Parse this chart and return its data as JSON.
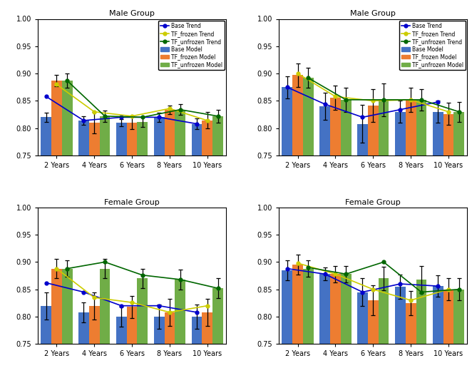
{
  "years": [
    "2 Years",
    "4 Years",
    "6 Years",
    "8 Years",
    "10 Years"
  ],
  "x_positions": [
    0,
    1,
    2,
    3,
    4
  ],
  "top_left": {
    "title": "Male Group",
    "bar_base": [
      0.82,
      0.814,
      0.81,
      0.82,
      0.808
    ],
    "bar_frozen": [
      0.887,
      0.81,
      0.81,
      0.834,
      0.814
    ],
    "bar_unfrozen": [
      0.887,
      0.822,
      0.811,
      0.834,
      0.822
    ],
    "bar_err_base": [
      0.008,
      0.008,
      0.007,
      0.008,
      0.01
    ],
    "bar_err_frozen": [
      0.01,
      0.02,
      0.012,
      0.008,
      0.015
    ],
    "bar_err_unfrozen": [
      0.013,
      0.01,
      0.009,
      0.01,
      0.012
    ],
    "trend_base": [
      0.858,
      0.814,
      0.82,
      0.82,
      0.808
    ],
    "trend_frozen": [
      0.88,
      0.83,
      0.822,
      0.836,
      0.814
    ],
    "trend_unfrozen": [
      0.887,
      0.822,
      0.82,
      0.834,
      0.822
    ],
    "ylim": [
      0.75,
      1.0
    ]
  },
  "top_right": {
    "title": "Male Group",
    "bar_base": [
      0.875,
      0.84,
      0.808,
      0.83,
      0.83
    ],
    "bar_frozen": [
      0.897,
      0.856,
      0.842,
      0.852,
      0.826
    ],
    "bar_unfrozen": [
      0.892,
      0.852,
      0.852,
      0.852,
      0.83
    ],
    "bar_err_base": [
      0.02,
      0.025,
      0.035,
      0.02,
      0.02
    ],
    "bar_err_frozen": [
      0.022,
      0.022,
      0.03,
      0.022,
      0.02
    ],
    "bar_err_unfrozen": [
      0.018,
      0.022,
      0.03,
      0.02,
      0.018
    ],
    "trend_base": [
      0.875,
      0.844,
      0.82,
      0.834,
      0.848
    ],
    "trend_frozen": [
      0.9,
      0.858,
      0.85,
      0.852,
      0.83
    ],
    "trend_unfrozen": [
      0.892,
      0.852,
      0.852,
      0.852,
      0.83
    ],
    "ylim": [
      0.75,
      1.0
    ]
  },
  "bottom_left": {
    "title": "Female Group",
    "bar_base": [
      0.82,
      0.808,
      0.8,
      0.8,
      0.8
    ],
    "bar_frozen": [
      0.888,
      0.82,
      0.818,
      0.808,
      0.808
    ],
    "bar_unfrozen": [
      0.888,
      0.888,
      0.87,
      0.868,
      0.852
    ],
    "bar_err_base": [
      0.025,
      0.018,
      0.018,
      0.022,
      0.022
    ],
    "bar_err_frozen": [
      0.018,
      0.025,
      0.02,
      0.025,
      0.025
    ],
    "bar_err_unfrozen": [
      0.015,
      0.018,
      0.018,
      0.018,
      0.018
    ],
    "trend_base": [
      0.862,
      0.845,
      0.82,
      0.82,
      0.808
    ],
    "trend_frozen": [
      0.888,
      0.835,
      0.826,
      0.808,
      0.82
    ],
    "trend_unfrozen": [
      0.888,
      0.9,
      0.876,
      0.868,
      0.852
    ],
    "ylim": [
      0.75,
      1.0
    ]
  },
  "bottom_right": {
    "title": "Female Group",
    "bar_base": [
      0.885,
      0.878,
      0.845,
      0.855,
      0.856
    ],
    "bar_frozen": [
      0.895,
      0.878,
      0.83,
      0.825,
      0.85
    ],
    "bar_unfrozen": [
      0.888,
      0.878,
      0.87,
      0.868,
      0.85
    ],
    "bar_err_base": [
      0.018,
      0.012,
      0.025,
      0.022,
      0.02
    ],
    "bar_err_frozen": [
      0.018,
      0.015,
      0.028,
      0.022,
      0.02
    ],
    "bar_err_unfrozen": [
      0.015,
      0.015,
      0.022,
      0.025,
      0.02
    ],
    "trend_base": [
      0.888,
      0.878,
      0.845,
      0.86,
      0.856
    ],
    "trend_frozen": [
      0.898,
      0.878,
      0.85,
      0.83,
      0.85
    ],
    "trend_unfrozen": [
      0.89,
      0.878,
      0.9,
      0.845,
      0.85
    ],
    "ylim": [
      0.75,
      1.0
    ]
  },
  "colors": {
    "base": "#4472C4",
    "frozen": "#ED7D31",
    "unfrozen": "#70AD47",
    "trend_base": "#0000CC",
    "trend_frozen": "#CCCC00",
    "trend_unfrozen": "#006600"
  },
  "bar_width": 0.28,
  "legend_labels": {
    "trend_base": "Base Trend",
    "trend_frozen": "TF_frozen Trend",
    "trend_unfrozen": "TF_unfrozen Trend",
    "base": "Base Model",
    "frozen": "TF_frozen Model",
    "unfrozen": "TF_unfrozen Model"
  }
}
